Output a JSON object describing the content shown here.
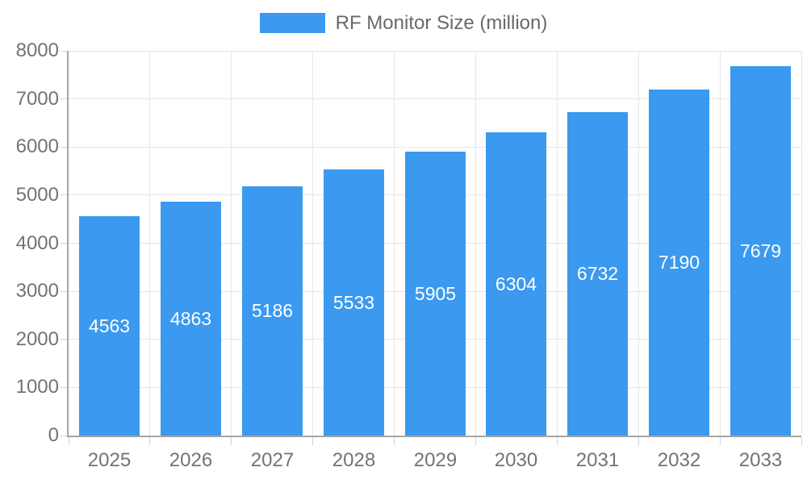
{
  "chart_data": {
    "type": "bar",
    "title": "",
    "legend_label": "RF Monitor Size (million)",
    "legend_position": "top",
    "categories": [
      "2025",
      "2026",
      "2027",
      "2028",
      "2029",
      "2030",
      "2031",
      "2032",
      "2033"
    ],
    "series": [
      {
        "name": "RF Monitor Size (million)",
        "values": [
          4563,
          4863,
          5186,
          5533,
          5905,
          6304,
          6732,
          7190,
          7679
        ]
      }
    ],
    "bar_labels_shown": true,
    "bar_labels": [
      "4563",
      "4863",
      "5186",
      "5533",
      "5905",
      "6304",
      "6732",
      "7190",
      "7679"
    ],
    "xlabel": "",
    "ylabel": "",
    "ylim": [
      0,
      8000
    ],
    "ytick_step": 1000,
    "yticks": [
      "0",
      "1000",
      "2000",
      "3000",
      "4000",
      "5000",
      "6000",
      "7000",
      "8000"
    ],
    "grid": true,
    "colors": {
      "bar": "#3b99ef",
      "bar_label": "#ffffff",
      "axis_text": "#737373",
      "legend_text": "#696969",
      "grid_line": "#e6e6e6",
      "axis_line": "#a6a6a6",
      "tick_line": "#d4d4d4"
    }
  }
}
